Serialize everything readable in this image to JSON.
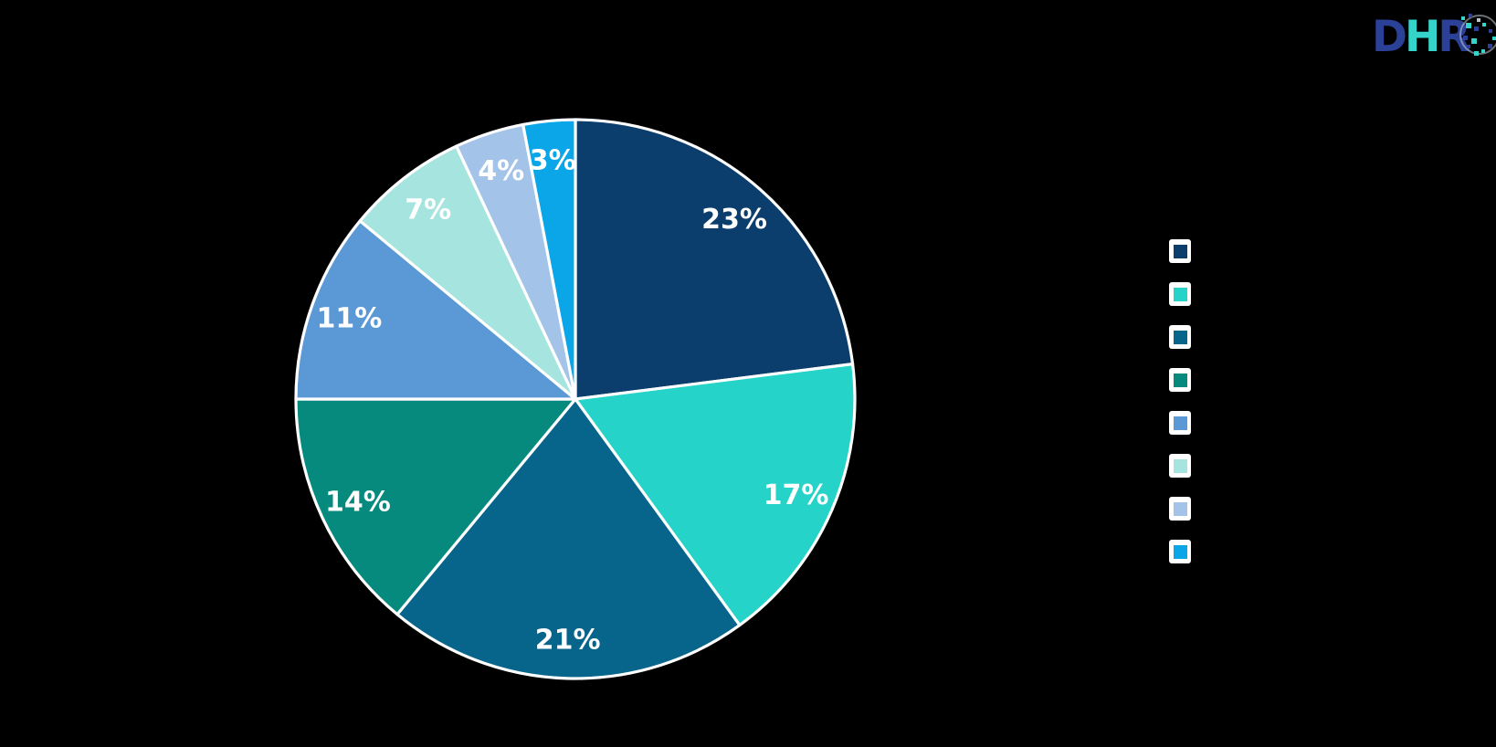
{
  "page": {
    "background_color": "#000000"
  },
  "logo": {
    "letters": [
      "D",
      "H",
      "R"
    ],
    "blue": "#2b4097",
    "teal": "#35d4cb"
  },
  "chart_data": {
    "type": "pie",
    "title": "",
    "slices": [
      {
        "label": "23%",
        "value": 23,
        "color": "#0b3d6d"
      },
      {
        "label": "17%",
        "value": 17,
        "color": "#25d3c8"
      },
      {
        "label": "21%",
        "value": 21,
        "color": "#07648a"
      },
      {
        "label": "14%",
        "value": 14,
        "color": "#078a7e"
      },
      {
        "label": "11%",
        "value": 11,
        "color": "#5b98d6"
      },
      {
        "label": "7%",
        "value": 7,
        "color": "#a6e4df"
      },
      {
        "label": "4%",
        "value": 4,
        "color": "#a4c3e8"
      },
      {
        "label": "3%",
        "value": 3,
        "color": "#0aa6e8"
      }
    ],
    "start_angle_deg": 0,
    "direction": "clockwise",
    "slice_border_color": "#ffffff",
    "data_label_color": "#ffffff",
    "legend_position": "right",
    "legend_labels_visible": false
  }
}
